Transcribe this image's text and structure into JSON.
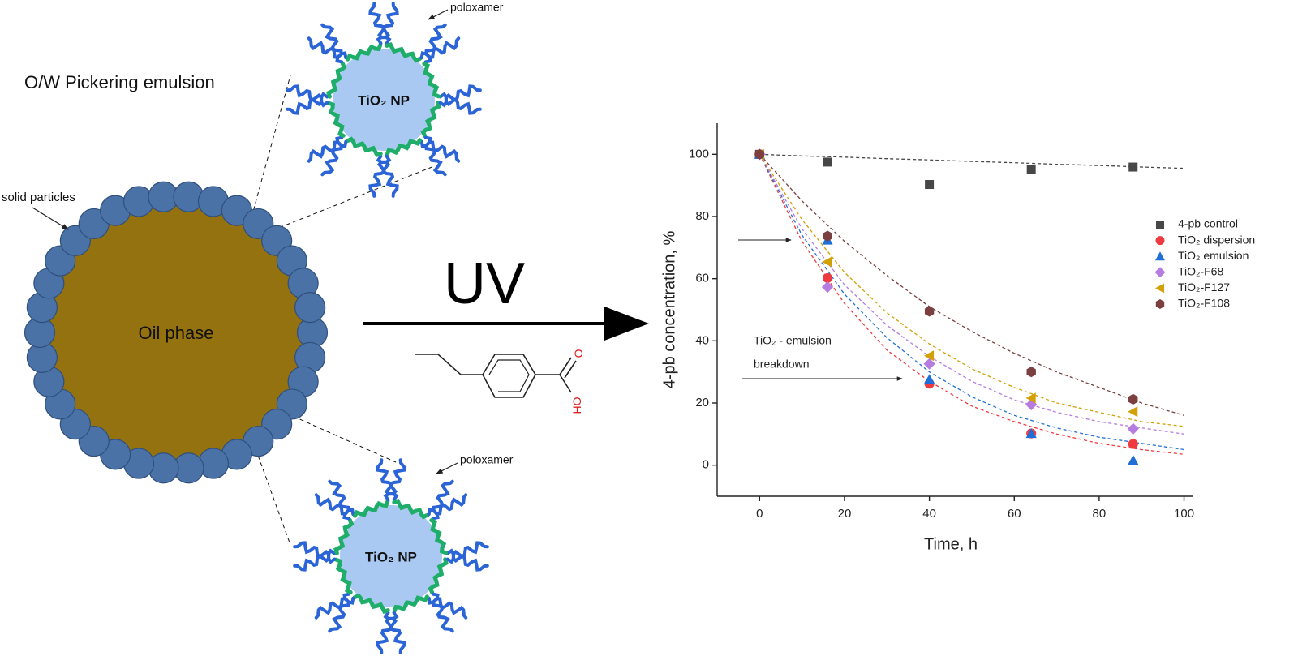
{
  "diagram": {
    "emulsion_label": "O/W Pickering emulsion",
    "particles_label": "solid particles",
    "oil_label": "Oil phase",
    "uv_label": "UV",
    "np_top": {
      "label": "TiO₂ NP",
      "poloxamer": "poloxamer"
    },
    "np_bottom": {
      "label": "TiO₂ NP",
      "poloxamer": "poloxamer"
    },
    "molecule": {
      "carbonyl": "O",
      "hydroxyl": "OH"
    }
  },
  "chart_data": {
    "type": "scatter",
    "x_label": "Time, h",
    "y_label": "4-pb concentration, %",
    "x": [
      0,
      16,
      40,
      64,
      88
    ],
    "fit_x": [
      0,
      10,
      20,
      30,
      40,
      50,
      60,
      70,
      80,
      90,
      100
    ],
    "series": [
      {
        "name": "4-pb control",
        "color": "#474747",
        "marker": "square",
        "values": [
          100,
          97.5,
          90.3,
          95.2,
          95.9
        ],
        "fit_values": [
          100,
          99.5,
          99.1,
          98.6,
          98.2,
          97.7,
          97.3,
          96.8,
          96.4,
          95.9,
          95.5
        ]
      },
      {
        "name": "TiO₂ dispersion",
        "color": "#ef3b3f",
        "marker": "circle",
        "values": [
          100,
          60.2,
          26.2,
          10.2,
          6.8
        ],
        "fit_values": [
          100,
          72,
          52,
          37,
          27,
          19,
          14,
          10,
          7,
          5,
          3.5
        ]
      },
      {
        "name": "TiO₂ emulsion",
        "color": "#1f6fd6",
        "marker": "triangle",
        "values": [
          100,
          72.4,
          27.6,
          10.2,
          1.6
        ],
        "fit_values": [
          100,
          74,
          55,
          41,
          30,
          22,
          16,
          12,
          9,
          7,
          5
        ]
      },
      {
        "name": "TiO₂-F68",
        "color": "#b77ce0",
        "marker": "diamond",
        "values": [
          100,
          57.3,
          32.6,
          19.5,
          11.7
        ],
        "fit_values": [
          100,
          76,
          58,
          45,
          35,
          27,
          21,
          17,
          14,
          12,
          10
        ]
      },
      {
        "name": "TiO₂-F127",
        "color": "#d2a106",
        "marker": "left-triangle",
        "values": [
          100,
          65.4,
          35.2,
          21.6,
          17.2
        ],
        "fit_values": [
          100,
          79,
          62,
          49,
          39,
          31,
          25,
          20,
          17,
          14,
          12.5
        ]
      },
      {
        "name": "TiO₂-F108",
        "color": "#7b3f3f",
        "marker": "hexagon",
        "values": [
          100,
          73.7,
          49.5,
          30,
          21.2
        ],
        "fit_values": [
          100,
          85,
          72,
          61,
          51,
          43,
          36,
          30,
          25,
          20,
          16
        ]
      }
    ],
    "annotation": [
      "TiO₂ - emulsion",
      "breakdown"
    ],
    "xlim": [
      -10,
      102
    ],
    "ylim": [
      -10,
      110
    ],
    "xticks": [
      0,
      20,
      40,
      60,
      80,
      100
    ],
    "yticks": [
      0,
      20,
      40,
      60,
      80,
      100
    ],
    "grid": false,
    "legend": "right"
  }
}
